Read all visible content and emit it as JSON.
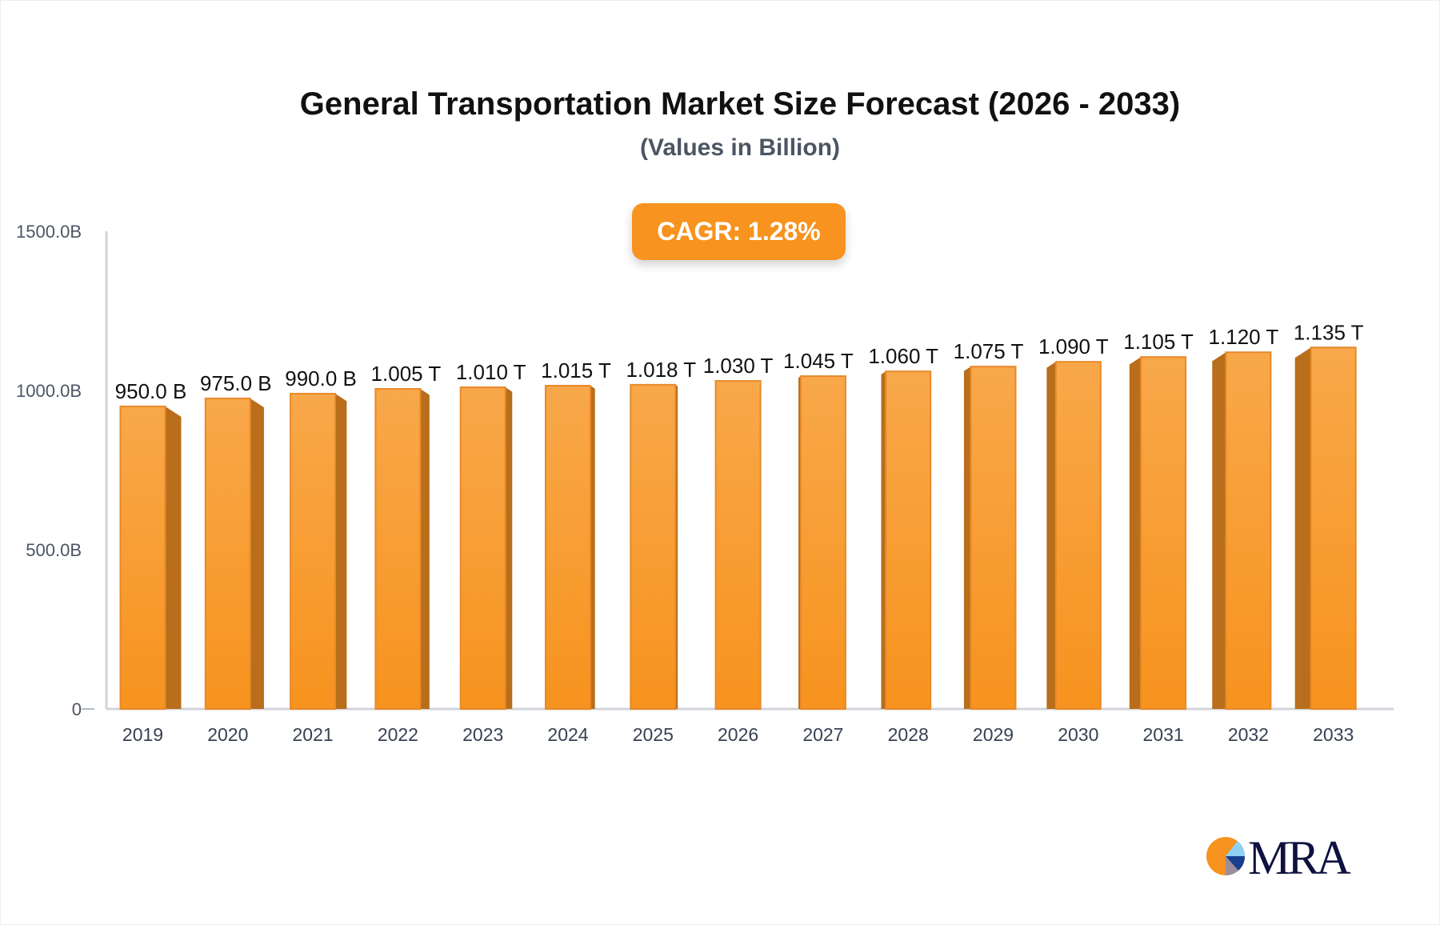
{
  "chart_data": {
    "type": "bar",
    "title": "General Transportation Market Size Forecast (2026 - 2033)",
    "subtitle": "(Values in Billion)",
    "annotation": "CAGR: 1.28%",
    "categories": [
      "2019",
      "2020",
      "2021",
      "2022",
      "2023",
      "2024",
      "2025",
      "2026",
      "2027",
      "2028",
      "2029",
      "2030",
      "2031",
      "2032",
      "2033"
    ],
    "values": [
      950.0,
      975.0,
      990.0,
      1005,
      1010,
      1015,
      1018,
      1030,
      1045,
      1060,
      1075,
      1090,
      1105,
      1120,
      1135
    ],
    "data_labels": [
      "950.0 B",
      "975.0 B",
      "990.0 B",
      "1.005 T",
      "1.010 T",
      "1.015 T",
      "1.018 T",
      "1.030 T",
      "1.045 T",
      "1.060 T",
      "1.075 T",
      "1.090 T",
      "1.105 T",
      "1.120 T",
      "1.135 T"
    ],
    "yticks": [
      0,
      500,
      1000,
      1500
    ],
    "ytick_labels": [
      "0",
      "500.0B",
      "1000.0B",
      "1500.0B"
    ],
    "ylim": [
      0,
      1500
    ],
    "xlabel": "",
    "ylabel": "",
    "grid": false,
    "legend": "none",
    "colors": {
      "bar": "#f7931e",
      "bar_light": "#f8a84a",
      "bar_side": "#b86e1a",
      "bar_border": "#e8892a",
      "axis": "#d1d5db",
      "badge": "#f7931e"
    }
  },
  "logo": {
    "text": "MRA"
  }
}
